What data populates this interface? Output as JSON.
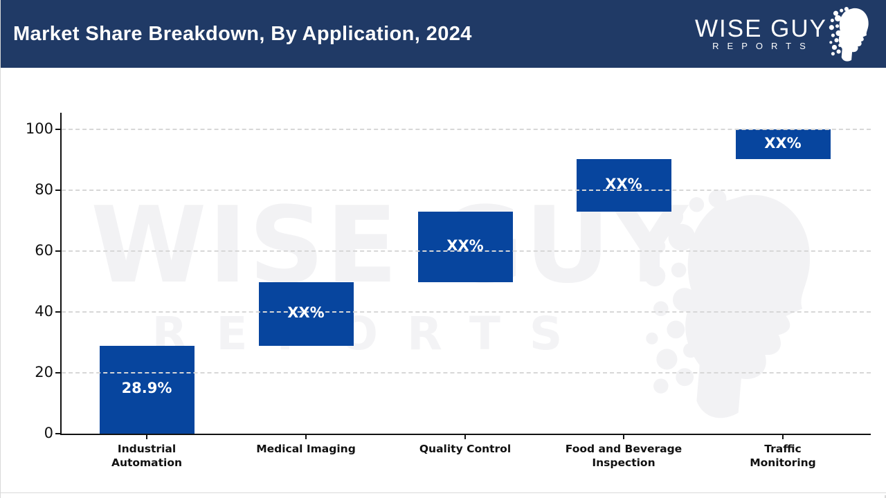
{
  "header": {
    "title": "Market Share Breakdown, By Application, 2024",
    "bg_color": "#203a66",
    "logo": {
      "line1": "WISE GUY",
      "line2": "REPORTS"
    }
  },
  "watermark": {
    "line1": "WISE GUY",
    "line2": "REPORTS"
  },
  "chart_data": {
    "type": "bar",
    "subtype": "floating-waterfall",
    "title": "Market Share Breakdown, By Application, 2024",
    "categories": [
      "Industrial Automation",
      "Medical Imaging",
      "Quality Control",
      "Food and Beverage Inspection",
      "Traffic Monitoring"
    ],
    "segments": [
      {
        "category": "Industrial\nAutomation",
        "start": 0,
        "end": 28.9,
        "label": "28.9%"
      },
      {
        "category": "Medical Imaging",
        "start": 28.9,
        "end": 49.7,
        "label": "XX%"
      },
      {
        "category": "Quality Control",
        "start": 49.7,
        "end": 73.0,
        "label": "XX%"
      },
      {
        "category": "Food and Beverage\nInspection",
        "start": 73.0,
        "end": 90.2,
        "label": "XX%"
      },
      {
        "category": "Traffic Monitoring",
        "start": 90.2,
        "end": 100.0,
        "label": "XX%"
      }
    ],
    "yticks": [
      0,
      20,
      40,
      60,
      80,
      100
    ],
    "ylim": [
      0,
      105
    ],
    "xlabel": "",
    "ylabel": "",
    "grid": "horizontal-dashed",
    "legend": "none",
    "bar_color": "#07459e",
    "value_label_color": "#ffffff"
  }
}
